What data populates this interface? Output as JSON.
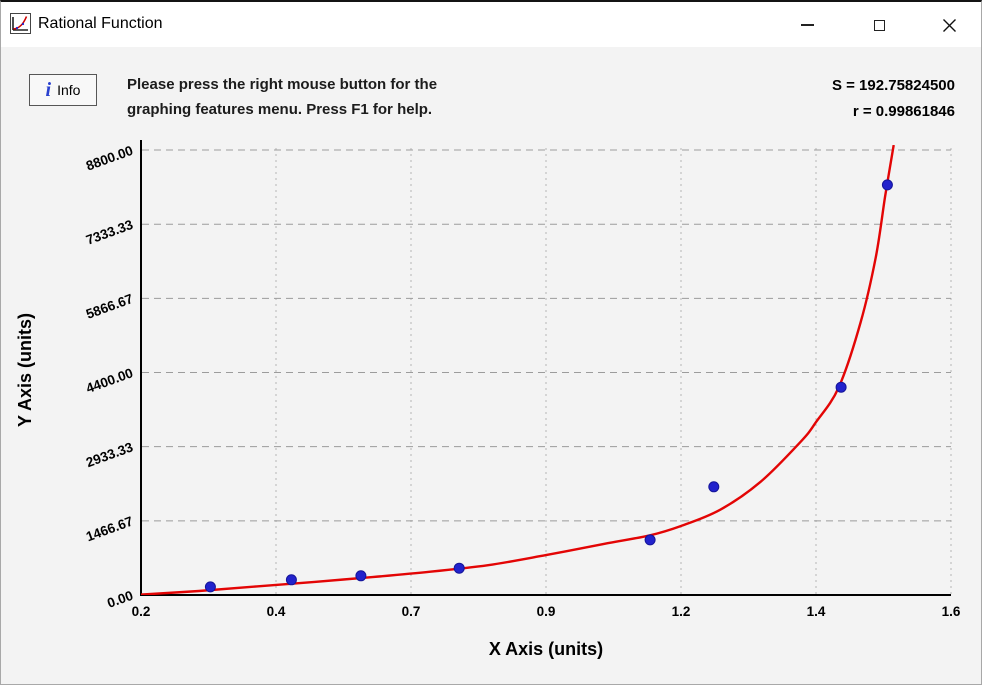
{
  "window": {
    "title": "Rational Function"
  },
  "header": {
    "info_button": "Info",
    "info_icon": "i",
    "instructions": [
      "Please press the right mouse button for the",
      "graphing features menu.  Press F1 for help."
    ],
    "stats": {
      "s": "S = 192.75824500",
      "r": "r = 0.99861846"
    }
  },
  "chart_data": {
    "type": "scatter",
    "title": "",
    "xlabel": "X Axis (units)",
    "ylabel": "Y Axis (units)",
    "xlim": [
      0.2,
      1.6
    ],
    "ylim": [
      0,
      8900
    ],
    "grid": true,
    "x_ticks": [
      0.2,
      0.43333,
      0.66667,
      0.9,
      1.13333,
      1.36667,
      1.6
    ],
    "x_tick_labels": [
      "0.2",
      "0.4",
      "0.7",
      "0.9",
      "1.2",
      "1.4",
      "1.6"
    ],
    "y_ticks": [
      0,
      1466.67,
      2933.33,
      4400,
      5866.67,
      7333.33,
      8800
    ],
    "y_tick_labels": [
      "0.00",
      "1466.67",
      "2933.33",
      "4400.00",
      "5866.67",
      "7333.33",
      "8800.00"
    ],
    "points": [
      [
        0.32,
        160
      ],
      [
        0.46,
        300
      ],
      [
        0.58,
        380
      ],
      [
        0.75,
        530
      ],
      [
        1.08,
        1090
      ],
      [
        1.19,
        2140
      ],
      [
        1.41,
        4110
      ],
      [
        1.49,
        8110
      ]
    ],
    "fit_curve": [
      [
        0.2,
        8
      ],
      [
        0.3,
        80
      ],
      [
        0.4,
        170
      ],
      [
        0.5,
        260
      ],
      [
        0.6,
        355
      ],
      [
        0.7,
        460
      ],
      [
        0.8,
        590
      ],
      [
        0.9,
        790
      ],
      [
        1.0,
        1010
      ],
      [
        1.08,
        1180
      ],
      [
        1.1333,
        1365
      ],
      [
        1.2,
        1680
      ],
      [
        1.27,
        2230
      ],
      [
        1.34,
        3030
      ],
      [
        1.3667,
        3420
      ],
      [
        1.406,
        4110
      ],
      [
        1.444,
        5400
      ],
      [
        1.47,
        6680
      ],
      [
        1.486,
        7870
      ],
      [
        1.501,
        8900
      ]
    ],
    "point_color": "#2222cc",
    "point_edge_color": "#15159a",
    "curve_color": "#e30505",
    "grid_color": "#9c9c9c",
    "grid_color_v": "#b5b5b5",
    "axis_color": "#000000"
  }
}
